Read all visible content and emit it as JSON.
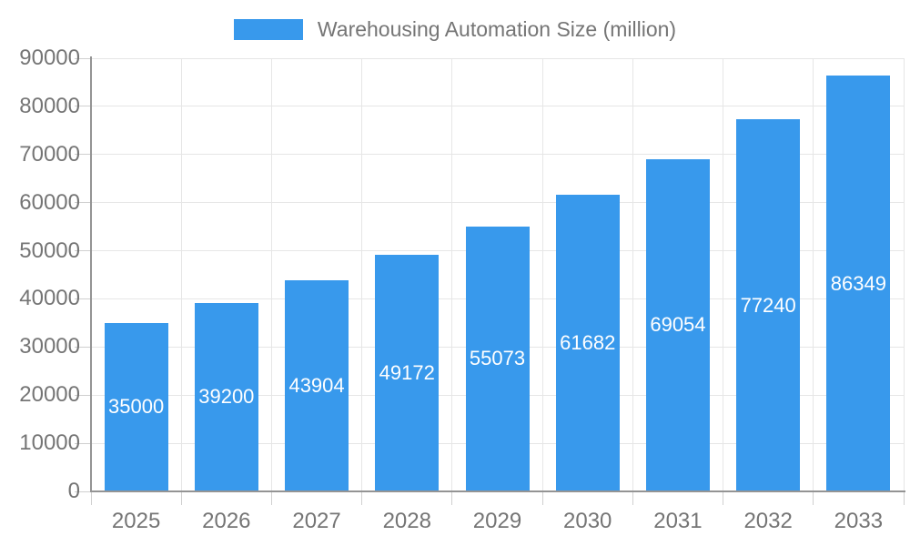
{
  "chart_data": {
    "type": "bar",
    "title": "Warehousing Automation Size (million)",
    "categories": [
      "2025",
      "2026",
      "2027",
      "2028",
      "2029",
      "2030",
      "2031",
      "2032",
      "2033"
    ],
    "values": [
      35000,
      39200,
      43904,
      49172,
      55073,
      61682,
      69054,
      77240,
      86349
    ],
    "bar_value_labels": [
      "35000",
      "39200",
      "43904",
      "49172",
      "55073",
      "61682",
      "69054",
      "77240",
      "86349"
    ],
    "xlabel": "",
    "ylabel": "",
    "ylim": [
      0,
      90000
    ],
    "ytick_values": [
      0,
      10000,
      20000,
      30000,
      40000,
      50000,
      60000,
      70000,
      80000,
      90000
    ],
    "ytick_labels": [
      "0",
      "10000",
      "20000",
      "30000",
      "40000",
      "50000",
      "60000",
      "70000",
      "80000",
      "90000"
    ],
    "grid": true,
    "legend_position": "top-center",
    "colors": {
      "bar": "#3899EC",
      "bar_label_text": "#FFFFFF",
      "axis_text": "#757575",
      "axis_line": "#949494",
      "gridline": "#E6E6E6",
      "tick": "#D0D0D0",
      "background": "#FFFFFF"
    }
  }
}
